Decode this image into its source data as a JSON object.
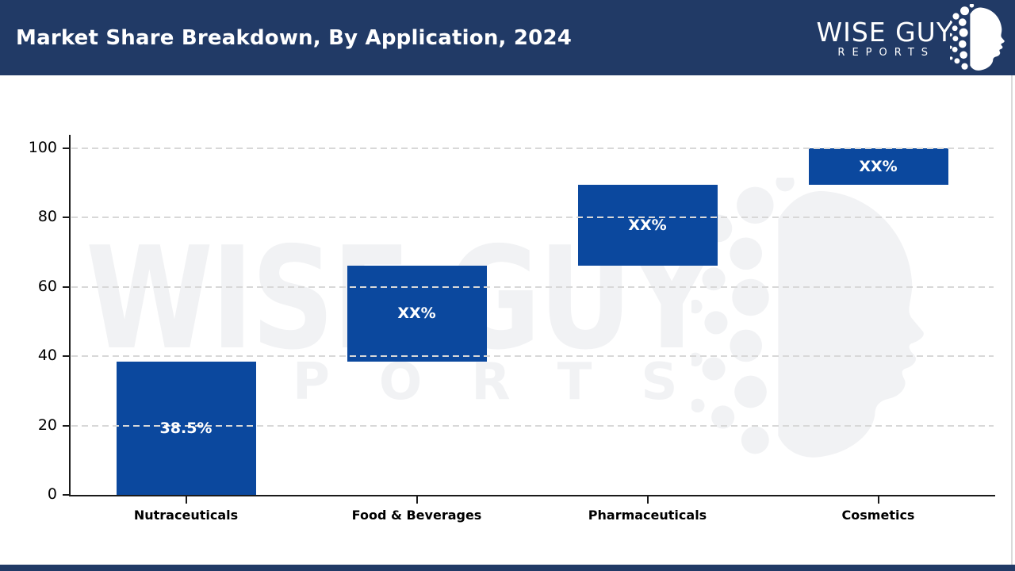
{
  "header": {
    "title": "Market Share Breakdown, By Application, 2024",
    "logo": {
      "line1": "WISE GUY",
      "line2": "REPORTS"
    }
  },
  "watermark": {
    "line1": "WISE GUY",
    "line2": "REPORTS"
  },
  "chart_data": {
    "type": "bar",
    "subtype": "waterfall",
    "title": "Market Share Breakdown, By Application, 2024",
    "categories": [
      "Nutraceuticals",
      "Food & Beverages",
      "Pharmaceuticals",
      "Cosmetics"
    ],
    "segments": [
      {
        "category": "Nutraceuticals",
        "start": 0,
        "end": 38.5,
        "label": "38.5%"
      },
      {
        "category": "Food & Beverages",
        "start": 38.5,
        "end": 66.2,
        "label": "XX%"
      },
      {
        "category": "Pharmaceuticals",
        "start": 66.2,
        "end": 89.5,
        "label": "XX%"
      },
      {
        "category": "Cosmetics",
        "start": 89.5,
        "end": 100,
        "label": "XX%"
      }
    ],
    "ylim": [
      0,
      100
    ],
    "yticks": [
      0,
      20,
      40,
      60,
      80,
      100
    ],
    "grid": "horizontal-dashed",
    "legend": "none",
    "xlabel": "",
    "ylabel": ""
  },
  "colors": {
    "header_bg": "#213a66",
    "footer_bg": "#213a66",
    "bar": "#0b489e",
    "bar_label": "#ffffff",
    "grid": "#d8d8d8",
    "axis": "#1a1a1a",
    "watermark": "#f1f2f4"
  }
}
